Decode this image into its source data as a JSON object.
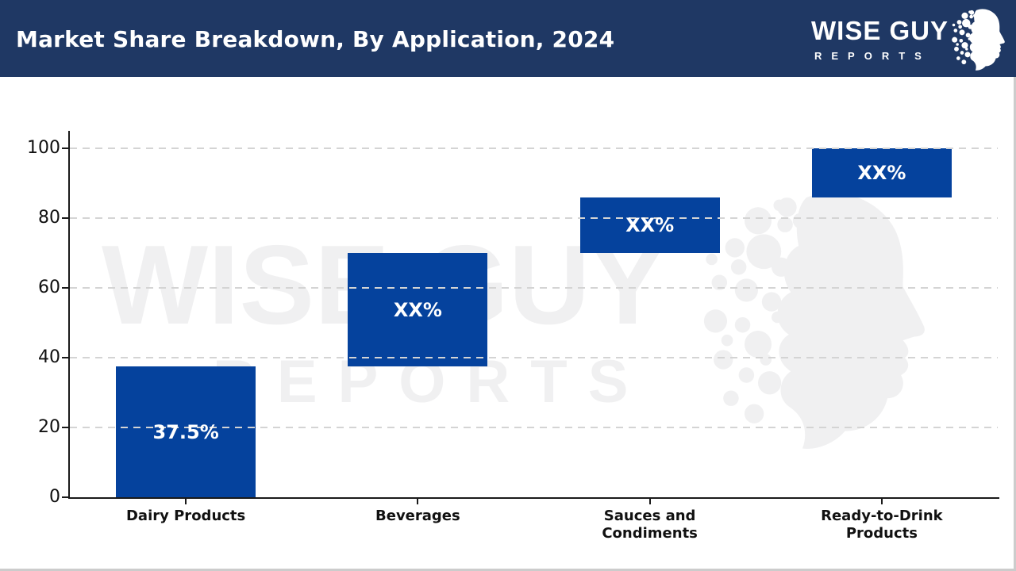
{
  "header": {
    "title": "Market Share Breakdown, By Application, 2024"
  },
  "brand": {
    "name_line1": "WISE GUY",
    "name_line2": "REPORTS"
  },
  "watermark": {
    "line1": "WISE GUY",
    "line2": "REPORTS"
  },
  "chart_data": {
    "type": "bar",
    "subtype": "waterfall",
    "title": "Market Share Breakdown, By Application, 2024",
    "categories": [
      "Dairy Products",
      "Beverages",
      "Sauces and Condiments",
      "Ready-to-Drink Products"
    ],
    "segments": [
      {
        "category": "Dairy Products",
        "start": 0,
        "end": 37.5,
        "label": "37.5%"
      },
      {
        "category": "Beverages",
        "start": 37.5,
        "end": 70,
        "label": "XX%"
      },
      {
        "category": "Sauces and Condiments",
        "start": 70,
        "end": 86,
        "label": "XX%"
      },
      {
        "category": "Ready-to-Drink Products",
        "start": 86,
        "end": 100,
        "label": "XX%"
      }
    ],
    "y_ticks": [
      0,
      20,
      40,
      60,
      80,
      100
    ],
    "ylim": [
      0,
      105
    ],
    "xlabel": "",
    "ylabel": "",
    "grid": "horizontal-dashed",
    "legend": "none",
    "colors": {
      "bar": "#05429d",
      "bar_label": "#ffffff",
      "grid": "#d4d4d4",
      "axis": "#1a1a1a",
      "header_bg": "#1f3864",
      "watermark": "#f0f0f1"
    }
  }
}
